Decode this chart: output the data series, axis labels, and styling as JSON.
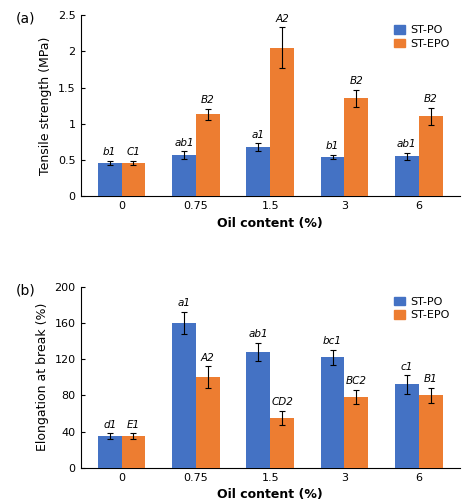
{
  "categories": [
    "0",
    "0.75",
    "1.5",
    "3",
    "6"
  ],
  "panel_a": {
    "title": "(a)",
    "ylabel": "Tensile strength (MPa)",
    "xlabel": "Oil content (%)",
    "ylim": [
      0,
      2.5
    ],
    "yticks": [
      0,
      0.5,
      1.0,
      1.5,
      2.0,
      2.5
    ],
    "ytick_labels": [
      "0",
      "0.5",
      "1",
      "1.5",
      "2",
      "2.5"
    ],
    "stpo_values": [
      0.46,
      0.57,
      0.68,
      0.54,
      0.55
    ],
    "stepo_values": [
      0.46,
      1.13,
      2.05,
      1.35,
      1.1
    ],
    "stpo_errors": [
      0.03,
      0.05,
      0.05,
      0.03,
      0.05
    ],
    "stepo_errors": [
      0.03,
      0.08,
      0.28,
      0.12,
      0.12
    ],
    "stpo_labels": [
      "b1",
      "ab1",
      "a1",
      "b1",
      "ab1"
    ],
    "stepo_labels": [
      "C1",
      "B2",
      "A2",
      "B2",
      "B2"
    ]
  },
  "panel_b": {
    "title": "(b)",
    "ylabel": "Elongation at break (%)",
    "xlabel": "Oil content (%)",
    "ylim": [
      0,
      200
    ],
    "yticks": [
      0,
      40,
      80,
      120,
      160,
      200
    ],
    "ytick_labels": [
      "0",
      "40",
      "80",
      "120",
      "160",
      "200"
    ],
    "stpo_values": [
      35,
      160,
      128,
      122,
      92
    ],
    "stepo_values": [
      35,
      100,
      55,
      78,
      80
    ],
    "stpo_errors": [
      3,
      12,
      10,
      8,
      10
    ],
    "stepo_errors": [
      3,
      12,
      8,
      8,
      8
    ],
    "stpo_labels": [
      "d1",
      "a1",
      "ab1",
      "bc1",
      "c1"
    ],
    "stepo_labels": [
      "E1",
      "A2",
      "CD2",
      "BC2",
      "B1"
    ]
  },
  "color_stpo": "#4472C4",
  "color_stepo": "#ED7D31",
  "legend_labels": [
    "ST-PO",
    "ST-EPO"
  ],
  "bar_width": 0.32,
  "label_fontsize": 7.5,
  "axis_label_fontsize": 9,
  "tick_fontsize": 8,
  "legend_fontsize": 8
}
